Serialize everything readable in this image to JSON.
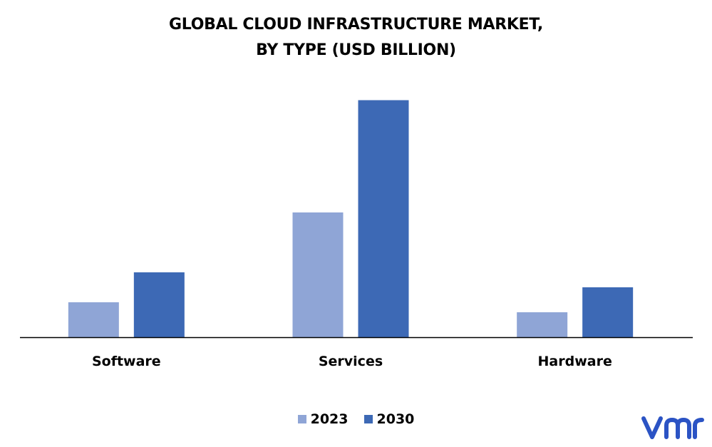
{
  "chart_data": {
    "type": "bar",
    "title_line1": "GLOBAL CLOUD INFRASTRUCTURE MARKET,",
    "title_line2": "BY TYPE (USD BILLION)",
    "categories": [
      "Software",
      "Services",
      "Hardware"
    ],
    "series": [
      {
        "name": "2023",
        "color": "#8fa5d6",
        "values": [
          14,
          50,
          10
        ]
      },
      {
        "name": "2030",
        "color": "#3d69b5",
        "values": [
          26,
          95,
          20
        ]
      }
    ],
    "ylim": [
      0,
      100
    ],
    "grid": false,
    "legend_position": "bottom-center"
  },
  "logo": {
    "icon": "vmr-logo-icon",
    "color": "#2b53c4"
  }
}
